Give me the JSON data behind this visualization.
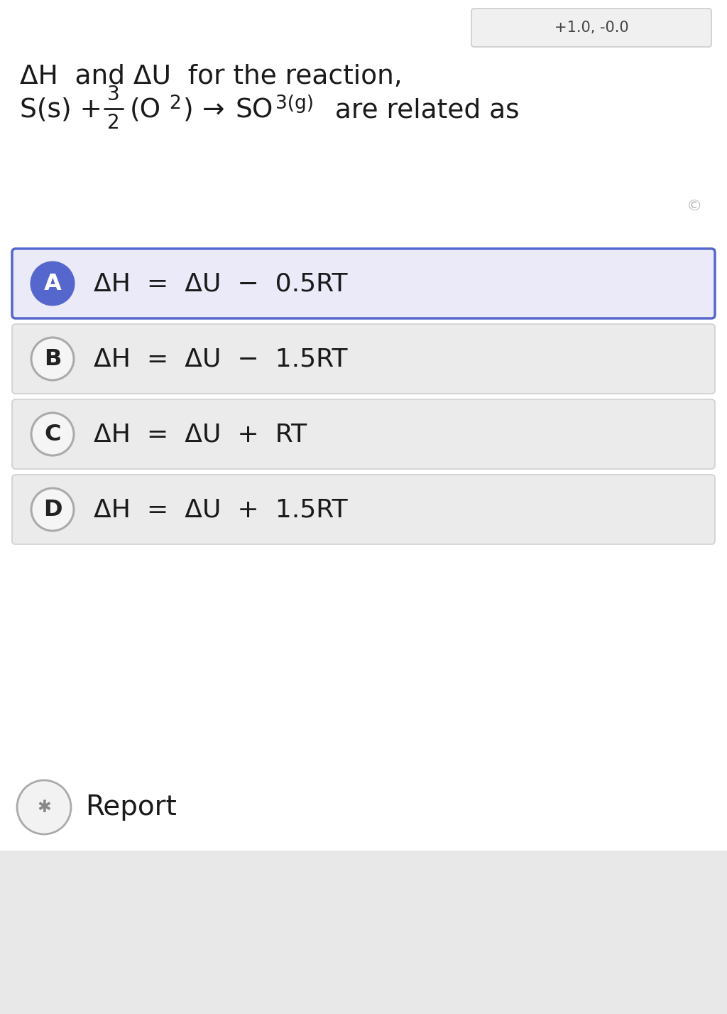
{
  "bg_color": "#ffffff",
  "bottom_bg_color": "#e8e8e8",
  "score_text": "+1.0, -0.0",
  "options": [
    {
      "label": "A",
      "text": "ΔH  =  ΔU  −  0.5RT",
      "selected": true
    },
    {
      "label": "B",
      "text": "ΔH  =  ΔU  −  1.5RT",
      "selected": false
    },
    {
      "label": "C",
      "text": "ΔH  =  ΔU  +  RT",
      "selected": false
    },
    {
      "label": "D",
      "text": "ΔH  =  ΔU  +  1.5RT",
      "selected": false
    }
  ],
  "selected_bg": "#eaeaf8",
  "selected_border": "#5566cc",
  "unselected_bg": "#ebebeb",
  "unselected_border": "#d0d0d0",
  "selected_circle_color": "#5566cc",
  "unselected_circle_color": "#f5f5f5",
  "label_color_selected": "#ffffff",
  "label_color_unselected": "#222222",
  "text_color": "#1a1a1a",
  "score_box_bg": "#f0f0f0",
  "score_box_border": "#cccccc",
  "report_text": "Report",
  "copyright_color": "#bbbbbb"
}
